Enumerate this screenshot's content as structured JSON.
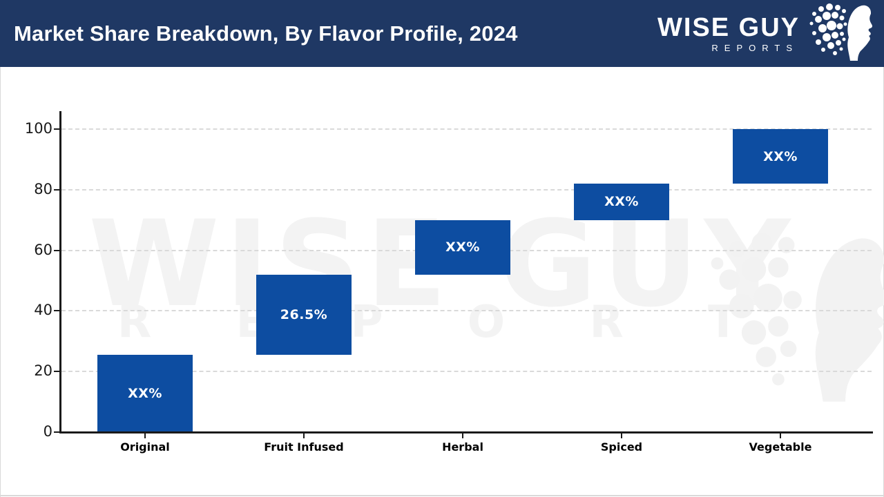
{
  "header": {
    "title": "Market Share Breakdown, By Flavor Profile, 2024",
    "logo": {
      "line1": "WISE GUY",
      "line2": "REPORTS"
    }
  },
  "watermark": {
    "line1": "WISE GUY",
    "line2": "REPORTS"
  },
  "colors": {
    "header_bg": "#1F3864",
    "bar": "#0D4DA1",
    "gridline": "#D9D9D9",
    "axis": "#1A1A1A",
    "bar_label": "#FFFFFF",
    "watermark": "#F3F3F3"
  },
  "chart_data": {
    "type": "bar",
    "subtype": "waterfall",
    "title": "Market Share Breakdown, By Flavor Profile, 2024",
    "xlabel": "",
    "ylabel": "",
    "ylim": [
      0,
      105
    ],
    "yticks": [
      0,
      20,
      40,
      60,
      80,
      100
    ],
    "grid": "horizontal-dashed",
    "legend": "none",
    "categories": [
      "Original",
      "Fruit Infused",
      "Herbal",
      "Spiced",
      "Vegetable"
    ],
    "segments": [
      {
        "category": "Original",
        "start": 0,
        "end": 25.5,
        "increment": 25.5,
        "display_label": "XX%"
      },
      {
        "category": "Fruit Infused",
        "start": 25.5,
        "end": 52,
        "increment": 26.5,
        "display_label": "26.5%"
      },
      {
        "category": "Herbal",
        "start": 52,
        "end": 70,
        "increment": 18,
        "display_label": "XX%"
      },
      {
        "category": "Spiced",
        "start": 70,
        "end": 82,
        "increment": 12,
        "display_label": "XX%"
      },
      {
        "category": "Vegetable",
        "start": 82,
        "end": 100,
        "increment": 18,
        "display_label": "XX%"
      }
    ]
  }
}
